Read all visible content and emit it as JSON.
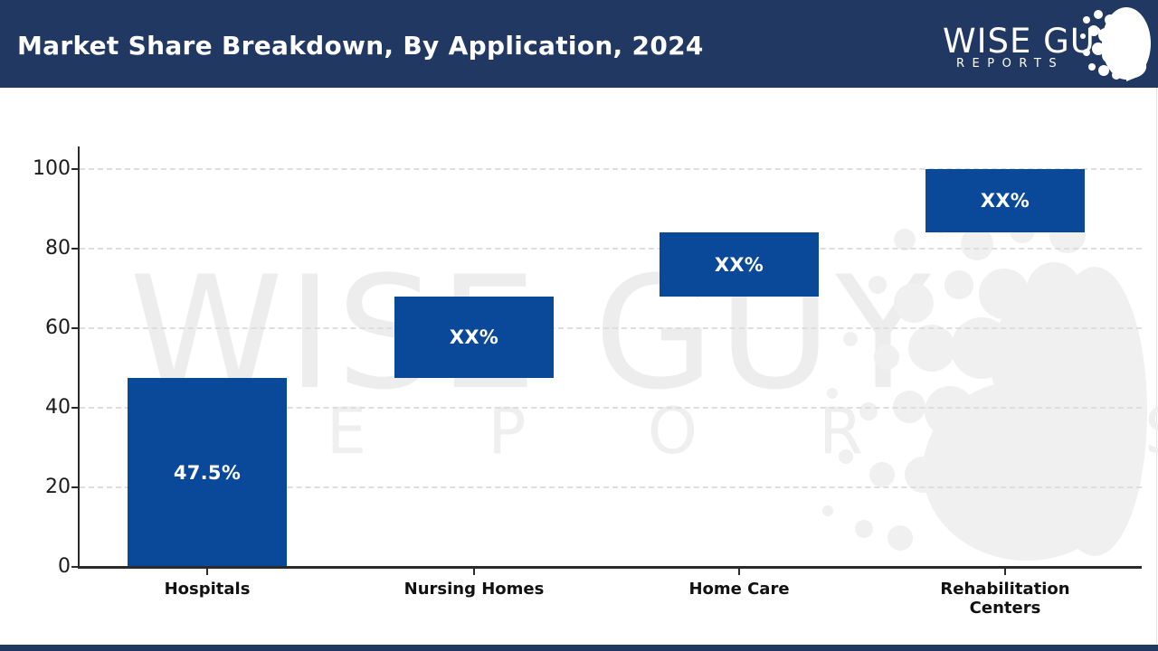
{
  "header": {
    "title": "Market Share Breakdown, By Application, 2024",
    "logo": {
      "wordmark": "WISE GUY",
      "subtext": "REPORTS"
    }
  },
  "watermark": {
    "wordmark": "WISE GUY",
    "subtext": "R E P O R T S"
  },
  "colors": {
    "header_bg": "#213863",
    "footer_bg": "#213863",
    "bar": "#0a4899",
    "bar_label": "#ffffff",
    "axis": "#2b2b2b",
    "grid": "#dedede",
    "tick_label": "#1c1c1c",
    "watermark": "#eeeeee"
  },
  "chart_data": {
    "type": "bar",
    "subtype": "waterfall",
    "title": "Market Share Breakdown, By Application, 2024",
    "categories": [
      "Hospitals",
      "Nursing Homes",
      "Home Care",
      "Rehabilitation Centers"
    ],
    "segments": [
      {
        "category": "Hospitals",
        "start": 0,
        "end": 47.5,
        "value": 47.5,
        "label": "47.5%"
      },
      {
        "category": "Nursing Homes",
        "start": 47.5,
        "end": 68,
        "value": 20.5,
        "label": "XX%"
      },
      {
        "category": "Home Care",
        "start": 68,
        "end": 84,
        "value": 16,
        "label": "XX%"
      },
      {
        "category": "Rehabilitation Centers",
        "start": 84,
        "end": 100,
        "value": 16,
        "label": "XX%"
      }
    ],
    "xlabel": "",
    "ylabel": "",
    "ylim": [
      0,
      100
    ],
    "yticks": [
      0,
      20,
      40,
      60,
      80,
      100
    ],
    "grid": "horizontal-dashed",
    "legend": "none",
    "bar_color": "#0a4899",
    "value_label_color": "#ffffff"
  }
}
